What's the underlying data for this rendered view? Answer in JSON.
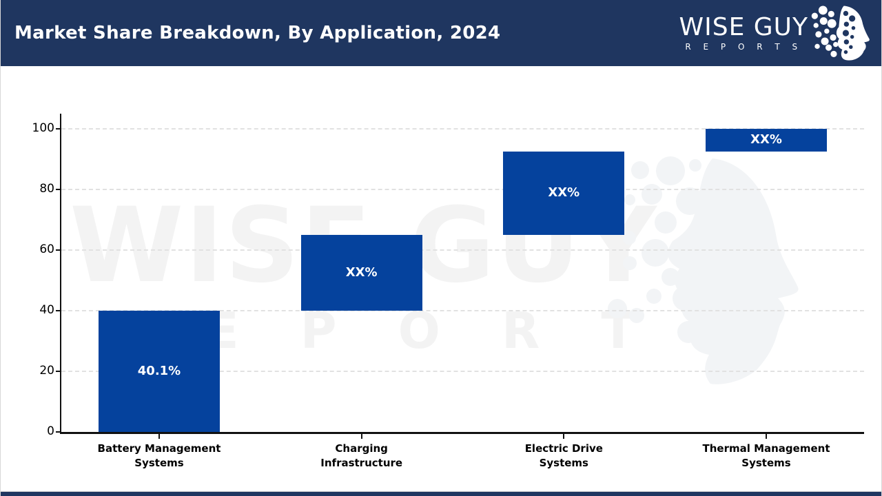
{
  "header": {
    "title": "Market Share Breakdown, By Application, 2024",
    "logo": {
      "brand_line1": "WISE GUY",
      "brand_line2": "R E P O R T S",
      "icon": "dotted-head-profile"
    }
  },
  "watermark": {
    "line1": "WISE GUY",
    "line2": "R E P O R T S",
    "icon": "dotted-head-profile"
  },
  "colors": {
    "header_bg": "#1f3660",
    "bar_blue": "#05429d",
    "grid": "#e1e1e1",
    "axis": "#111111",
    "watermark_gray": "#f2f4f6"
  },
  "chart_data": {
    "type": "bar",
    "subtype": "waterfall-segmented",
    "title": "Market Share Breakdown, By Application, 2024",
    "categories": [
      "Battery Management\nSystems",
      "Charging\nInfrastructure",
      "Electric Drive\nSystems",
      "Thermal Management\nSystems"
    ],
    "segments": [
      {
        "category": "Battery Management Systems",
        "start": 0,
        "end": 40.1,
        "label": "40.1%"
      },
      {
        "category": "Charging Infrastructure",
        "start": 40.1,
        "end": 65.1,
        "label": "XX%"
      },
      {
        "category": "Electric Drive Systems",
        "start": 65.1,
        "end": 92.6,
        "label": "XX%"
      },
      {
        "category": "Thermal Management Systems",
        "start": 92.6,
        "end": 100.1,
        "label": "XX%"
      }
    ],
    "yticks": [
      0,
      20,
      40,
      60,
      80,
      100
    ],
    "ylim": [
      0,
      105
    ],
    "xlabel": "",
    "ylabel": "",
    "grid": "horizontal-dashed",
    "legend": "none",
    "bar_color": "#05429d"
  }
}
